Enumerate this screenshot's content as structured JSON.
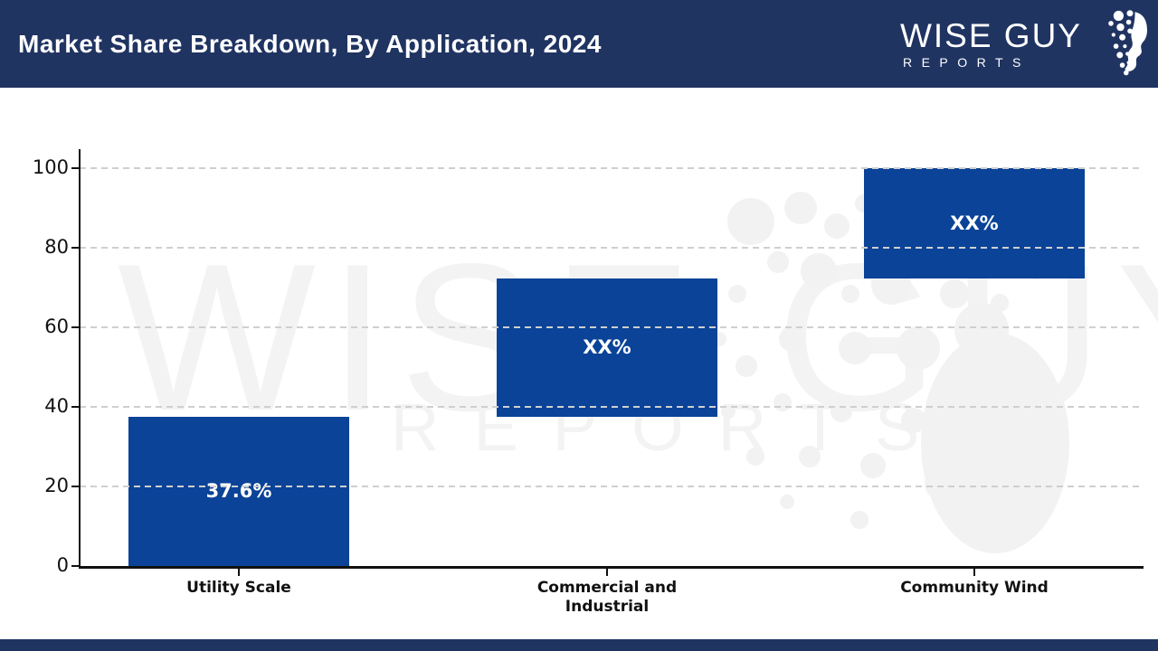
{
  "header": {
    "title": "Market Share Breakdown, By Application, 2024",
    "brand": {
      "line1": "WISE GUY",
      "line2": "REPORTS"
    }
  },
  "watermark": {
    "line1": "WISE GUY",
    "line2": "REPORTS"
  },
  "chart_data": {
    "type": "bar",
    "variant": "waterfall-stacked-percentage",
    "title": "Market Share Breakdown, By Application, 2024",
    "categories": [
      "Utility Scale",
      "Commercial and\nIndustrial",
      "Community Wind"
    ],
    "bars": [
      {
        "category": "Utility Scale",
        "start": 0,
        "end": 37.6,
        "label": "37.6%"
      },
      {
        "category": "Commercial and Industrial",
        "start": 37.6,
        "end": 72.2,
        "label": "XX%"
      },
      {
        "category": "Community Wind",
        "start": 72.2,
        "end": 100,
        "label": "XX%"
      }
    ],
    "y_ticks": [
      0,
      20,
      40,
      60,
      80,
      100
    ],
    "ylim": [
      0,
      104.8
    ],
    "xlabel": "",
    "ylabel": "",
    "legend": "none",
    "grid": "horizontal-dashed-above-bars"
  },
  "colors": {
    "header_bg": "#203462",
    "footer_bg": "#203462",
    "bar_color": "#0a4397",
    "title_text": "#ffffff",
    "bar_label_text": "#ffffff",
    "grid_color": "#cfcfcf",
    "axis_color": "#111111",
    "watermark_color": "#f3f3f3"
  }
}
